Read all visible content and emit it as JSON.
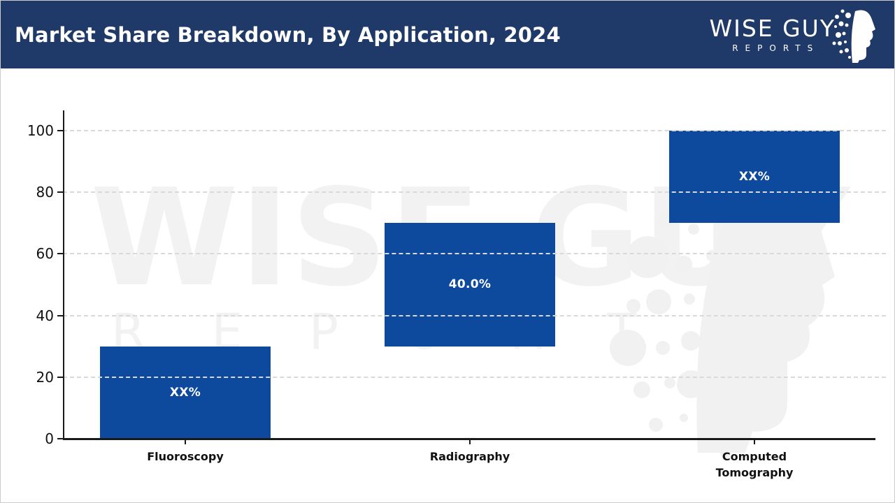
{
  "header": {
    "title": "Market Share Breakdown, By Application, 2024",
    "logo": {
      "name": "WISE GUY",
      "subtitle": "REPORTS"
    }
  },
  "watermark": {
    "name": "WISE GUY",
    "subtitle": "REPORTS"
  },
  "colors": {
    "header_bg": "#1f3a68",
    "bar_fill": "#0d4a9e",
    "bar_label_text": "#ffffff",
    "axis": "#1a1a1a",
    "gridline": "#d9d9d9",
    "tick_label": "#111111",
    "watermark": "#f2f2f2",
    "background": "#ffffff"
  },
  "chart_data": {
    "type": "bar",
    "subtype": "floating-range-bars",
    "title": "Market Share Breakdown, By Application, 2024",
    "categories": [
      "Fluoroscopy",
      "Radiography",
      "Computed Tomography"
    ],
    "bars": [
      {
        "category": "Fluoroscopy",
        "start": 0,
        "end": 30,
        "label": "XX%"
      },
      {
        "category": "Radiography",
        "start": 30,
        "end": 70,
        "label": "40.0%"
      },
      {
        "category": "Computed Tomography",
        "start": 70,
        "end": 100,
        "label": "XX%"
      }
    ],
    "ylim": [
      0,
      100
    ],
    "yticks": [
      0,
      20,
      40,
      60,
      80,
      100
    ],
    "xlabel": "",
    "ylabel": "",
    "grid": "dashed-horizontal",
    "legend": "none"
  }
}
